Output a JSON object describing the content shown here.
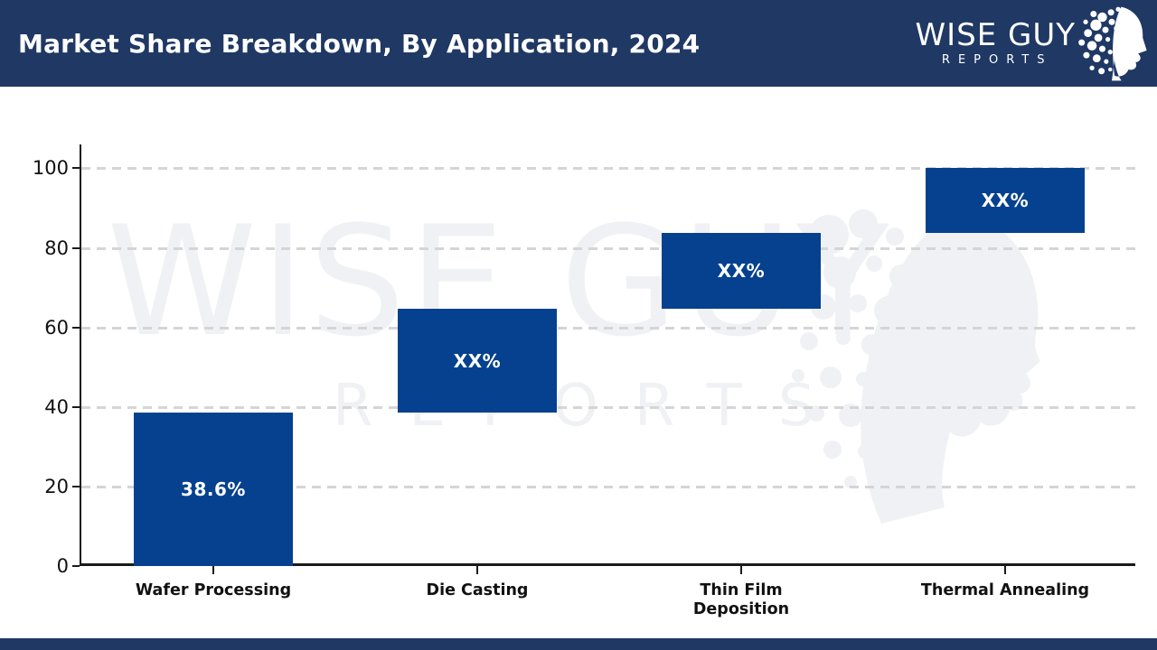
{
  "header": {
    "title": "Market Share Breakdown, By Application, 2024",
    "logo": {
      "wordmark": "WISE GUY",
      "subtitle": "REPORTS"
    }
  },
  "watermark": {
    "wordmark": "WISE GUY",
    "subtitle": "REPORTS"
  },
  "colors": {
    "header_bg": "#1F3864",
    "footer_bg": "#1F3864",
    "bar_fill": "#05418F",
    "bar_label_text": "#FFFFFF",
    "grid_line": "#D5D5D5",
    "axis_line": "#1A1A1A",
    "axis_text": "#111111",
    "watermark_fill": "#F0F1F4",
    "background": "#FFFFFF"
  },
  "chart_data": {
    "type": "bar",
    "subtype": "waterfall",
    "title": "Market Share Breakdown, By Application, 2024",
    "categories": [
      "Wafer Processing",
      "Die Casting",
      "Thin Film Deposition",
      "Thermal Annealing"
    ],
    "bars": [
      {
        "category": "Wafer Processing",
        "axis_label": "Wafer Processing",
        "start": 0,
        "end": 38.6,
        "label": "38.6%"
      },
      {
        "category": "Die Casting",
        "axis_label": "Die Casting",
        "start": 38.6,
        "end": 64.6,
        "label": "XX%"
      },
      {
        "category": "Thin Film Deposition",
        "axis_label": "Thin Film\nDeposition",
        "start": 64.6,
        "end": 83.8,
        "label": "XX%"
      },
      {
        "category": "Thermal Annealing",
        "axis_label": "Thermal Annealing",
        "start": 83.8,
        "end": 100,
        "label": "XX%"
      }
    ],
    "xlabel": "",
    "ylabel": "",
    "ylim": [
      0,
      106
    ],
    "yticks": [
      0,
      20,
      40,
      60,
      80,
      100
    ],
    "grid": "horizontal-dashed",
    "legend": "none"
  }
}
